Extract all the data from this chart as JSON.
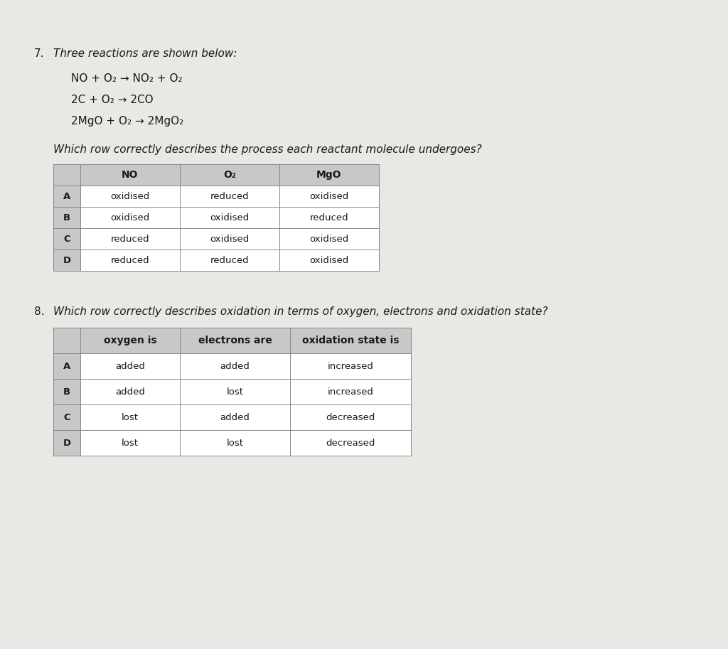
{
  "background_color": "#eae8e4",
  "q7_number": "7.",
  "q7_intro": "Three reactions are shown below:",
  "q7_reactions": [
    "NO + O₂ → NO₂ + O₂",
    "2C + O₂ → 2CO",
    "2MgO + O₂ → 2MgO₂"
  ],
  "q7_question": "Which row correctly describes the process each reactant molecule undergoes?",
  "table1_headers": [
    "",
    "NO",
    "O₂",
    "MgO"
  ],
  "table1_rows": [
    [
      "A",
      "oxidised",
      "reduced",
      "oxidised"
    ],
    [
      "B",
      "oxidised",
      "oxidised",
      "reduced"
    ],
    [
      "C",
      "reduced",
      "oxidised",
      "oxidised"
    ],
    [
      "D",
      "reduced",
      "reduced",
      "oxidised"
    ]
  ],
  "q8_number": "8.",
  "q8_question": "Which row correctly describes oxidation in terms of oxygen, electrons and oxidation state?",
  "table2_headers": [
    "",
    "oxygen is",
    "electrons are",
    "oxidation state is"
  ],
  "table2_rows": [
    [
      "A",
      "added",
      "added",
      "increased"
    ],
    [
      "B",
      "added",
      "lost",
      "increased"
    ],
    [
      "C",
      "lost",
      "added",
      "decreased"
    ],
    [
      "D",
      "lost",
      "lost",
      "decreased"
    ]
  ],
  "text_color": "#1a1a1a",
  "table_line_color": "#888888",
  "header_bg": "#c8c8c8",
  "cell_bg": "#ffffff",
  "row_label_bg": "#c8c8c8"
}
